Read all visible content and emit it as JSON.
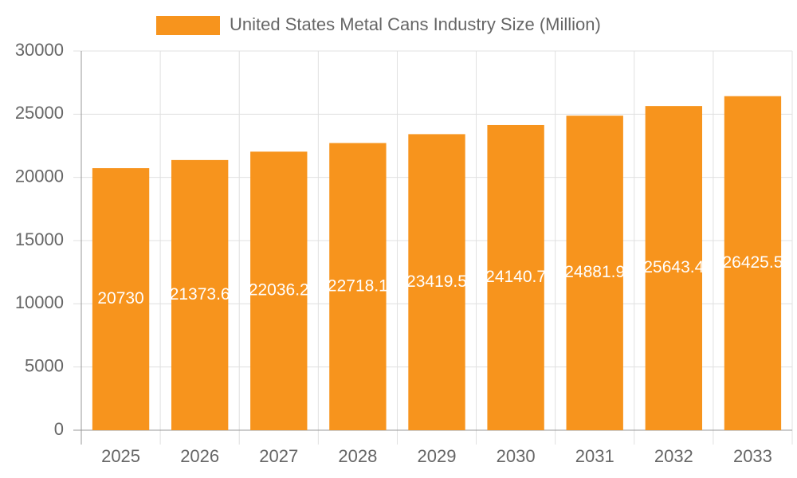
{
  "chart_data": {
    "type": "bar",
    "legend_label": "United States Metal Cans Industry Size (Million)",
    "categories": [
      "2025",
      "2026",
      "2027",
      "2028",
      "2029",
      "2030",
      "2031",
      "2032",
      "2033"
    ],
    "values": [
      20730,
      21373.6,
      22036.2,
      22718.1,
      23419.5,
      24140.7,
      24881.9,
      25643.4,
      26425.5
    ],
    "color": "#f7941d",
    "ylim": [
      0,
      30000
    ],
    "yticks": [
      0,
      5000,
      10000,
      15000,
      20000,
      25000,
      30000
    ],
    "grid": true,
    "legend_position": "top"
  }
}
